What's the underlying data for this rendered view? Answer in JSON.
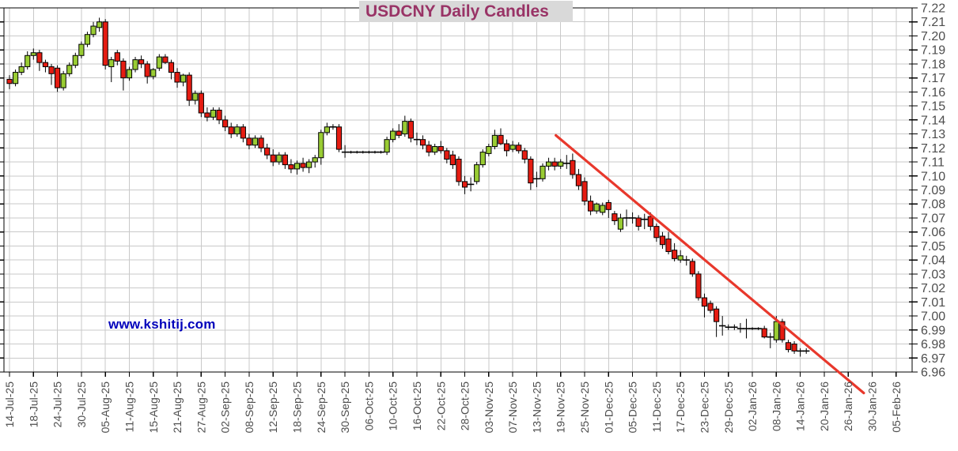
{
  "title": {
    "text": "USDCNY Daily Candles"
  },
  "watermark": {
    "text": "www.kshitij.com"
  },
  "colors": {
    "background": "#ffffff",
    "grid": "#c9c9c9",
    "frame": "#000000",
    "axis_text": "#4d4d4d",
    "title_text": "#993366",
    "title_bg": "#d9d9d9",
    "watermark": "#0000bb",
    "up": "#99cc33",
    "down": "#e51c12",
    "wick": "#000000",
    "trendline": "#e8382c"
  },
  "chart_data": {
    "type": "candlestick",
    "title": "USDCNY Daily Candles",
    "ylim": [
      6.96,
      7.22
    ],
    "y_tick_step": 0.01,
    "y_axis_side": "right",
    "grid": true,
    "y_tick_labels": [
      "7.22",
      "7.21",
      "7.20",
      "7.19",
      "7.18",
      "7.17",
      "7.16",
      "7.15",
      "7.14",
      "7.13",
      "7.12",
      "7.11",
      "7.10",
      "7.09",
      "7.08",
      "7.07",
      "7.06",
      "7.05",
      "7.04",
      "7.03",
      "7.02",
      "7.01",
      "7.00",
      "6.99",
      "6.98",
      "6.97",
      "6.96"
    ],
    "x_tick_labels": [
      "14-Jul-25",
      "18-Jul-25",
      "24-Jul-25",
      "30-Jul-25",
      "05-Aug-25",
      "11-Aug-25",
      "15-Aug-25",
      "21-Aug-25",
      "27-Aug-25",
      "02-Sep-25",
      "08-Sep-25",
      "12-Sep-25",
      "18-Sep-25",
      "24-Sep-25",
      "30-Sep-25",
      "06-Oct-25",
      "10-Oct-25",
      "16-Oct-25",
      "22-Oct-25",
      "28-Oct-25",
      "03-Nov-25",
      "07-Nov-25",
      "13-Nov-25",
      "19-Nov-25",
      "25-Nov-25",
      "01-Dec-25",
      "05-Dec-25",
      "11-Dec-25",
      "17-Dec-25",
      "23-Dec-25",
      "29-Dec-25",
      "02-Jan-26",
      "08-Jan-26",
      "14-Jan-26",
      "20-Jan-26",
      "26-Jan-26",
      "30-Jan-26",
      "05-Feb-26"
    ],
    "candles_per_x_tick": 4,
    "candles": [
      [
        7.169,
        7.172,
        7.162,
        7.166
      ],
      [
        7.166,
        7.176,
        7.164,
        7.174
      ],
      [
        7.174,
        7.181,
        7.172,
        7.178
      ],
      [
        7.178,
        7.189,
        7.176,
        7.186
      ],
      [
        7.186,
        7.191,
        7.183,
        7.188
      ],
      [
        7.188,
        7.19,
        7.175,
        7.181
      ],
      [
        7.181,
        7.183,
        7.174,
        7.178
      ],
      [
        7.178,
        7.18,
        7.165,
        7.173
      ],
      [
        7.177,
        7.179,
        7.16,
        7.163
      ],
      [
        7.163,
        7.175,
        7.161,
        7.173
      ],
      [
        7.173,
        7.181,
        7.171,
        7.179
      ],
      [
        7.179,
        7.188,
        7.177,
        7.186
      ],
      [
        7.186,
        7.196,
        7.184,
        7.194
      ],
      [
        7.194,
        7.203,
        7.192,
        7.201
      ],
      [
        7.201,
        7.21,
        7.199,
        7.207
      ],
      [
        7.206,
        7.213,
        7.203,
        7.21
      ],
      [
        7.21,
        7.212,
        7.176,
        7.179
      ],
      [
        7.178,
        7.185,
        7.167,
        7.183
      ],
      [
        7.188,
        7.19,
        7.179,
        7.182
      ],
      [
        7.182,
        7.184,
        7.161,
        7.17
      ],
      [
        7.17,
        7.178,
        7.168,
        7.176
      ],
      [
        7.176,
        7.185,
        7.174,
        7.183
      ],
      [
        7.183,
        7.186,
        7.177,
        7.18
      ],
      [
        7.18,
        7.182,
        7.166,
        7.171
      ],
      [
        7.171,
        7.177,
        7.169,
        7.176
      ],
      [
        7.177,
        7.187,
        7.175,
        7.185
      ],
      [
        7.185,
        7.187,
        7.18,
        7.181
      ],
      [
        7.181,
        7.183,
        7.169,
        7.174
      ],
      [
        7.174,
        7.177,
        7.163,
        7.167
      ],
      [
        7.167,
        7.173,
        7.164,
        7.172
      ],
      [
        7.172,
        7.174,
        7.15,
        7.154
      ],
      [
        7.154,
        7.161,
        7.151,
        7.159
      ],
      [
        7.159,
        7.161,
        7.142,
        7.145
      ],
      [
        7.145,
        7.149,
        7.139,
        7.142
      ],
      [
        7.142,
        7.149,
        7.14,
        7.147
      ],
      [
        7.147,
        7.149,
        7.137,
        7.14
      ],
      [
        7.14,
        7.143,
        7.132,
        7.135
      ],
      [
        7.135,
        7.138,
        7.127,
        7.13
      ],
      [
        7.13,
        7.137,
        7.128,
        7.135
      ],
      [
        7.135,
        7.137,
        7.124,
        7.127
      ],
      [
        7.127,
        7.13,
        7.119,
        7.122
      ],
      [
        7.122,
        7.129,
        7.12,
        7.127
      ],
      [
        7.127,
        7.129,
        7.117,
        7.12
      ],
      [
        7.12,
        7.123,
        7.112,
        7.115
      ],
      [
        7.115,
        7.119,
        7.107,
        7.11
      ],
      [
        7.11,
        7.117,
        7.108,
        7.115
      ],
      [
        7.115,
        7.117,
        7.105,
        7.108
      ],
      [
        7.108,
        7.112,
        7.102,
        7.105
      ],
      [
        7.105,
        7.111,
        7.101,
        7.109
      ],
      [
        7.109,
        7.113,
        7.103,
        7.106
      ],
      [
        7.106,
        7.112,
        7.102,
        7.11
      ],
      [
        7.11,
        7.115,
        7.106,
        7.113
      ],
      [
        7.113,
        7.133,
        7.108,
        7.131
      ],
      [
        7.131,
        7.138,
        7.129,
        7.135
      ],
      [
        7.135,
        7.137,
        7.133,
        7.135
      ],
      [
        7.135,
        7.137,
        7.117,
        7.119
      ],
      [
        7.117,
        7.122,
        7.113,
        7.117
      ],
      [
        7.117,
        7.118,
        7.116,
        7.117
      ],
      [
        7.117,
        7.118,
        7.116,
        7.117
      ],
      [
        7.117,
        7.118,
        7.116,
        7.117
      ],
      [
        7.117,
        7.118,
        7.116,
        7.117
      ],
      [
        7.117,
        7.118,
        7.116,
        7.117
      ],
      [
        7.117,
        7.118,
        7.116,
        7.117
      ],
      [
        7.117,
        7.128,
        7.115,
        7.126
      ],
      [
        7.126,
        7.134,
        7.124,
        7.132
      ],
      [
        7.132,
        7.137,
        7.127,
        7.129
      ],
      [
        7.13,
        7.143,
        7.128,
        7.139
      ],
      [
        7.139,
        7.141,
        7.124,
        7.127
      ],
      [
        7.126,
        7.131,
        7.122,
        7.126
      ],
      [
        7.126,
        7.129,
        7.119,
        7.122
      ],
      [
        7.122,
        7.125,
        7.114,
        7.117
      ],
      [
        7.117,
        7.123,
        7.115,
        7.121
      ],
      [
        7.121,
        7.125,
        7.116,
        7.118
      ],
      [
        7.118,
        7.12,
        7.109,
        7.112
      ],
      [
        7.115,
        7.118,
        7.105,
        7.108
      ],
      [
        7.112,
        7.114,
        7.093,
        7.096
      ],
      [
        7.096,
        7.1,
        7.087,
        7.092
      ],
      [
        7.094,
        7.099,
        7.089,
        7.094
      ],
      [
        7.096,
        7.11,
        7.094,
        7.108
      ],
      [
        7.108,
        7.119,
        7.106,
        7.117
      ],
      [
        7.116,
        7.123,
        7.114,
        7.121
      ],
      [
        7.121,
        7.133,
        7.119,
        7.129
      ],
      [
        7.129,
        7.134,
        7.122,
        7.123
      ],
      [
        7.123,
        7.126,
        7.114,
        7.118
      ],
      [
        7.119,
        7.125,
        7.117,
        7.122
      ],
      [
        7.122,
        7.124,
        7.116,
        7.118
      ],
      [
        7.118,
        7.12,
        7.109,
        7.112
      ],
      [
        7.112,
        7.114,
        7.09,
        7.095
      ],
      [
        7.098,
        7.103,
        7.092,
        7.098
      ],
      [
        7.098,
        7.109,
        7.096,
        7.107
      ],
      [
        7.107,
        7.113,
        7.104,
        7.11
      ],
      [
        7.11,
        7.113,
        7.104,
        7.107
      ],
      [
        7.107,
        7.112,
        7.105,
        7.11
      ],
      [
        7.109,
        7.115,
        7.105,
        7.109
      ],
      [
        7.111,
        7.116,
        7.098,
        7.101
      ],
      [
        7.101,
        7.105,
        7.09,
        7.093
      ],
      [
        7.096,
        7.099,
        7.079,
        7.082
      ],
      [
        7.082,
        7.086,
        7.072,
        7.075
      ],
      [
        7.075,
        7.081,
        7.073,
        7.08
      ],
      [
        7.074,
        7.081,
        7.072,
        7.079
      ],
      [
        7.081,
        7.083,
        7.07,
        7.076
      ],
      [
        7.073,
        7.075,
        7.065,
        7.068
      ],
      [
        7.062,
        7.073,
        7.06,
        7.07
      ],
      [
        7.07,
        7.076,
        7.064,
        7.07
      ],
      [
        7.07,
        7.074,
        7.066,
        7.07
      ],
      [
        7.07,
        7.072,
        7.061,
        7.064
      ],
      [
        7.069,
        7.073,
        7.062,
        7.069
      ],
      [
        7.071,
        7.074,
        7.061,
        7.064
      ],
      [
        7.064,
        7.066,
        7.053,
        7.056
      ],
      [
        7.057,
        7.06,
        7.048,
        7.051
      ],
      [
        7.055,
        7.06,
        7.044,
        7.046
      ],
      [
        7.047,
        7.052,
        7.039,
        7.041
      ],
      [
        7.04,
        7.047,
        7.038,
        7.043
      ],
      [
        7.04,
        7.043,
        7.036,
        7.04
      ],
      [
        7.039,
        7.041,
        7.028,
        7.03
      ],
      [
        7.03,
        7.032,
        7.011,
        7.013
      ],
      [
        7.013,
        7.016,
        6.999,
        7.007
      ],
      [
        7.009,
        7.011,
        7.002,
        7.004
      ],
      [
        7.005,
        7.007,
        6.985,
        6.996
      ],
      [
        6.993,
        7.0,
        6.986,
        6.993
      ],
      [
        6.992,
        6.994,
        6.99,
        6.992
      ],
      [
        6.992,
        6.994,
        6.99,
        6.992
      ],
      [
        6.991,
        6.995,
        6.988,
        6.991
      ],
      [
        6.991,
        6.998,
        6.984,
        6.991
      ],
      [
        6.991,
        6.992,
        6.99,
        6.991
      ],
      [
        6.991,
        6.992,
        6.99,
        6.991
      ],
      [
        6.991,
        6.993,
        6.984,
        6.985
      ],
      [
        6.985,
        6.988,
        6.977,
        6.985
      ],
      [
        6.983,
        7.0,
        6.981,
        6.996
      ],
      [
        6.996,
        6.998,
        6.981,
        6.983
      ],
      [
        6.981,
        6.983,
        6.974,
        6.976
      ],
      [
        6.98,
        6.982,
        6.973,
        6.975
      ],
      [
        6.975,
        6.977,
        6.971,
        6.975
      ],
      [
        6.975,
        6.977,
        6.973,
        6.975
      ]
    ],
    "trendline": {
      "start": {
        "candle_index": 91.2,
        "price": 7.129
      },
      "end": {
        "candle_index": 142.6,
        "price": 6.945
      }
    }
  }
}
